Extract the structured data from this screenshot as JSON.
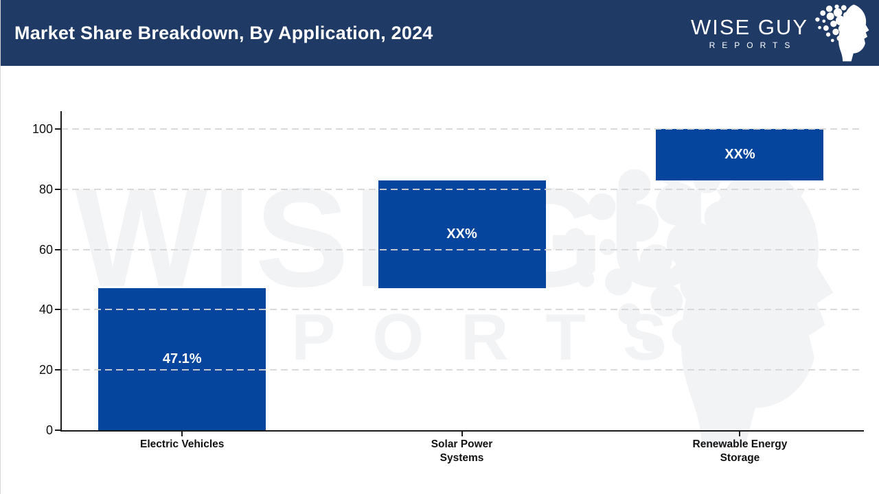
{
  "header": {
    "title": "Market Share Breakdown, By Application, 2024",
    "logo": {
      "line1": "WISE GUY",
      "line2": "REPORTS"
    }
  },
  "watermark": {
    "line1": "WISE GUY",
    "line2": "REPORTS"
  },
  "colors": {
    "header_bg": "#203a66",
    "bar_fill": "#05459e",
    "bar_label": "#ffffff",
    "axis": "#1a1a1a",
    "gridline": "#d6d6d6",
    "watermark": "#f2f3f5",
    "background": "#ffffff"
  },
  "chart_data": {
    "type": "bar",
    "subtype": "waterfall-stacked",
    "title": "Market Share Breakdown, By Application, 2024",
    "categories": [
      "Electric Vehicles",
      "Solar Power Systems",
      "Renewable Energy Storage"
    ],
    "bars": [
      {
        "category": "Electric Vehicles",
        "label_lines": [
          "Electric Vehicles"
        ],
        "start": 0,
        "end": 47.1,
        "label": "47.1%"
      },
      {
        "category": "Solar Power Systems",
        "label_lines": [
          "Solar Power",
          "Systems"
        ],
        "start": 47.1,
        "end": 82.9,
        "label": "XX%"
      },
      {
        "category": "Renewable Energy Storage",
        "label_lines": [
          "Renewable Energy",
          "Storage"
        ],
        "start": 82.9,
        "end": 100,
        "label": "XX%"
      }
    ],
    "xlabel": "",
    "ylabel": "",
    "ylim": [
      0,
      100
    ],
    "yticks": [
      0,
      20,
      40,
      60,
      80,
      100
    ],
    "grid": "horizontal-dashed",
    "legend": null
  }
}
